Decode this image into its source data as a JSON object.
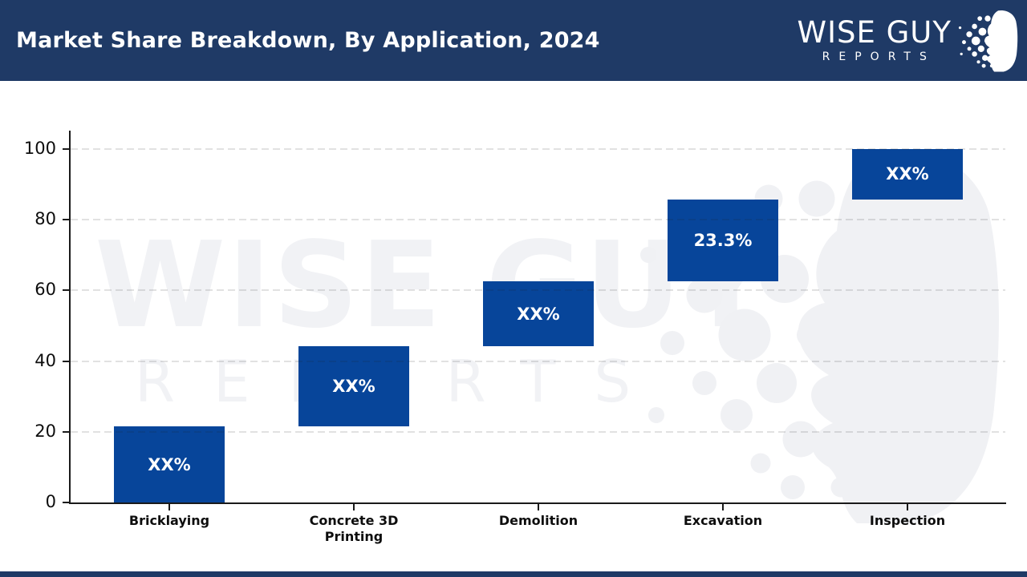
{
  "header": {
    "title": "Market Share Breakdown, By Application, 2024",
    "logo": {
      "line1": "WISE GUY",
      "line2": "REPORTS"
    }
  },
  "watermark": {
    "line1": "WISE GUY",
    "line2": "REPORTS"
  },
  "colors": {
    "header_bg": "#1f3a66",
    "bar": "#07459a",
    "bar_label_text": "#ffffff",
    "axis": "#1a1a1a",
    "watermark": "#f1f2f5"
  },
  "chart_data": {
    "type": "bar",
    "subtype": "waterfall-floating-bars",
    "title": "Market Share Breakdown, By Application, 2024",
    "categories": [
      "Bricklaying",
      "Concrete 3D Printing",
      "Demolition",
      "Excavation",
      "Inspection"
    ],
    "segments": [
      {
        "category": "Bricklaying",
        "start": 0,
        "end": 21.5,
        "label": "XX%"
      },
      {
        "category": "Concrete 3D Printing",
        "start": 21.5,
        "end": 44.2,
        "label": "XX%"
      },
      {
        "category": "Demolition",
        "start": 44.2,
        "end": 62.5,
        "label": "XX%"
      },
      {
        "category": "Excavation",
        "start": 62.5,
        "end": 85.8,
        "label": "23.3%"
      },
      {
        "category": "Inspection",
        "start": 85.8,
        "end": 100,
        "label": "XX%"
      }
    ],
    "yticks": [
      0,
      20,
      40,
      60,
      80,
      100
    ],
    "ylim": [
      0,
      100
    ],
    "xlabel": "",
    "ylabel": "",
    "grid": "horizontal-dashed",
    "legend": "none"
  }
}
